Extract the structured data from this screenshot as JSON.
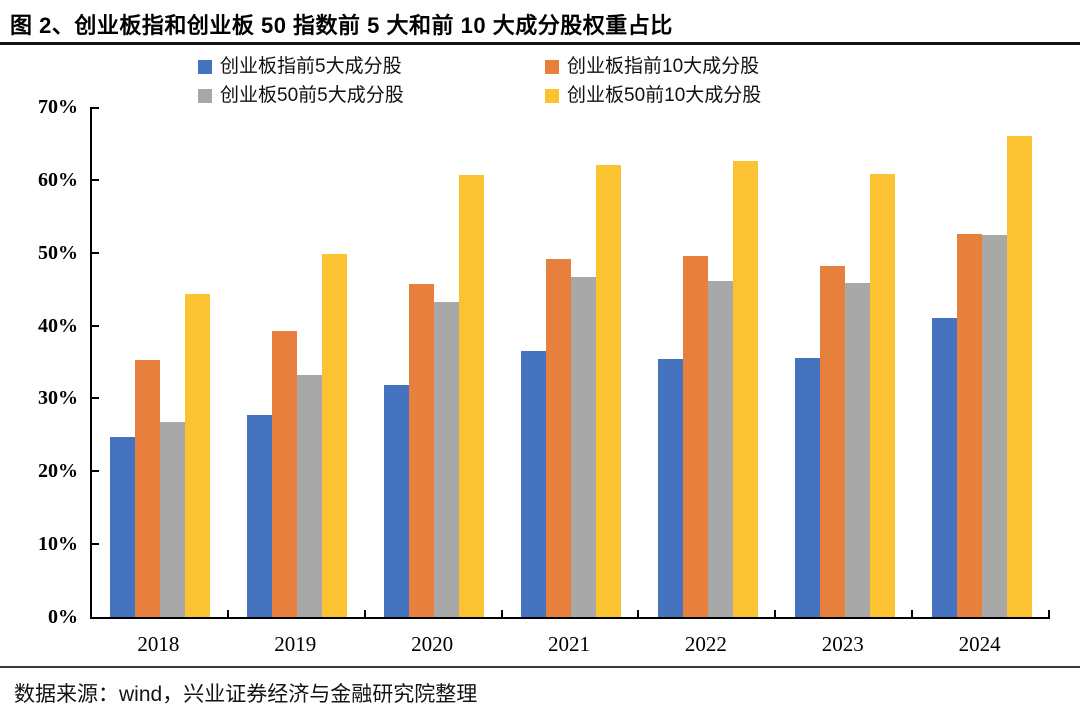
{
  "title": "图 2、创业板指和创业板 50 指数前 5 大和前 10 大成分股权重占比",
  "footer": {
    "source_text": "数据来源：wind，兴业证券经济与金融研究院整理"
  },
  "colors": {
    "blue": "#4673C0",
    "orange": "#E8803D",
    "gray": "#A8A8A8",
    "yellow": "#FBC232",
    "axis": "#000000"
  },
  "chart_data": {
    "type": "bar",
    "title": "图 2、创业板指和创业板 50 指数前 5 大和前 10 大成分股权重占比",
    "categories": [
      "2018",
      "2019",
      "2020",
      "2021",
      "2022",
      "2023",
      "2024"
    ],
    "series": [
      {
        "name": "创业板指前5大成分股",
        "color": "#4673C0",
        "values": [
          24.7,
          27.7,
          31.9,
          36.5,
          35.4,
          35.5,
          41.0
        ]
      },
      {
        "name": "创业板指前10大成分股",
        "color": "#E8803D",
        "values": [
          35.3,
          39.3,
          45.7,
          49.1,
          49.5,
          48.2,
          52.6
        ]
      },
      {
        "name": "创业板50前5大成分股",
        "color": "#A8A8A8",
        "values": [
          26.7,
          33.2,
          43.3,
          46.7,
          46.1,
          45.8,
          52.4
        ]
      },
      {
        "name": "创业板50前10大成分股",
        "color": "#FBC232",
        "values": [
          44.3,
          49.8,
          60.7,
          62.1,
          62.6,
          60.8,
          66.0
        ]
      }
    ],
    "xlabel": "",
    "ylabel": "",
    "ylim": [
      0,
      70
    ],
    "y_ticks": [
      "0%",
      "10%",
      "20%",
      "30%",
      "40%",
      "50%",
      "60%",
      "70%"
    ],
    "grid": false,
    "legend_position": "top"
  }
}
